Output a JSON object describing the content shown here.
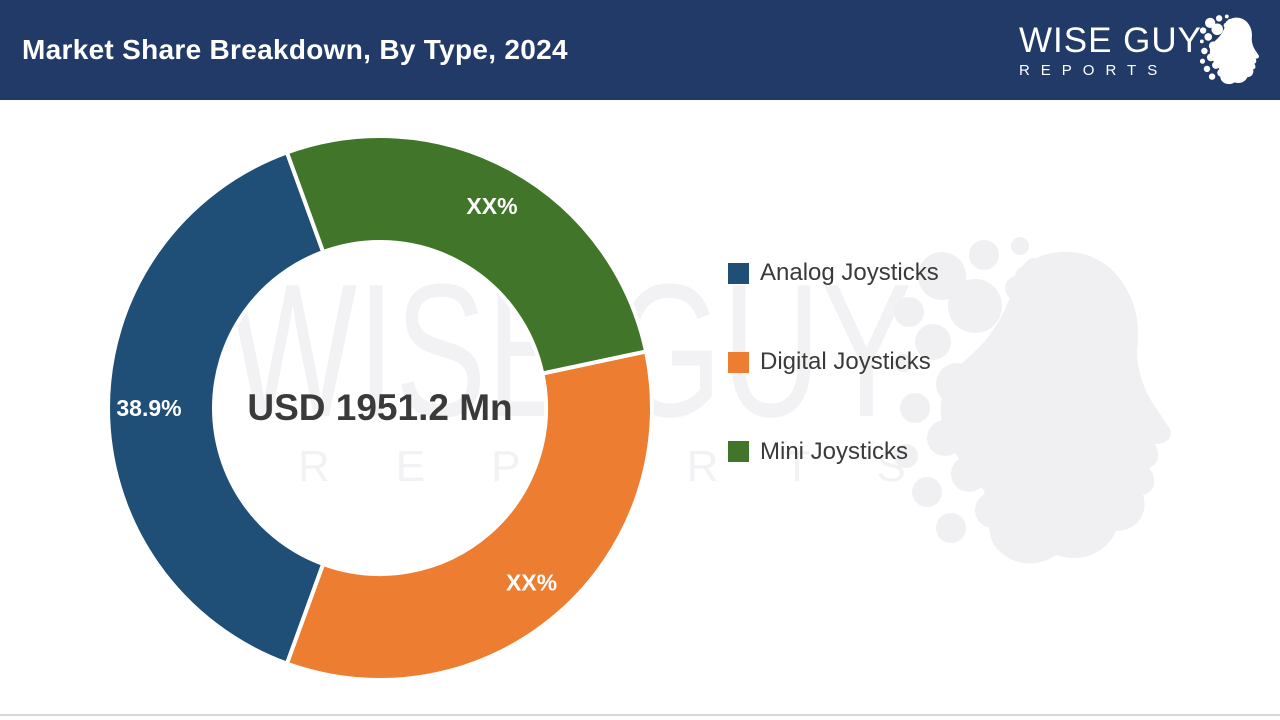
{
  "header": {
    "title": "Market Share Breakdown, By Type, 2024",
    "logo": {
      "line1": "WISE GUY",
      "line2": "REPORTS"
    }
  },
  "chart_data": {
    "type": "pie",
    "subtype": "donut",
    "title": "Market Share Breakdown, By Type, 2024",
    "center_label": "USD 1951.2 Mn",
    "legend_position": "right",
    "start_angle_deg": 110,
    "direction": "counterclockwise",
    "inner_radius_ratio": 0.61,
    "slices": [
      {
        "label": "Analog Joysticks",
        "display_value": "38.9%",
        "value_pct": 38.9,
        "sweep_deg": 140,
        "color": "#1F4E77"
      },
      {
        "label": "Digital Joysticks",
        "display_value": "XX%",
        "value_pct": null,
        "sweep_deg": 122,
        "color": "#ED7D31"
      },
      {
        "label": "Mini Joysticks",
        "display_value": "XX%",
        "value_pct": null,
        "sweep_deg": 98,
        "color": "#41752A"
      }
    ]
  },
  "watermark": {
    "line1": "WISE GUY",
    "line2": "REPORTS"
  },
  "colors": {
    "header_bg": "#223A68",
    "slice_separator": "#FFFFFF",
    "legend_text": "#3A3A3A",
    "center_text": "#3A3A3A",
    "watermark": "#F2F2F4",
    "bottom_line": "#D9D9D9"
  }
}
